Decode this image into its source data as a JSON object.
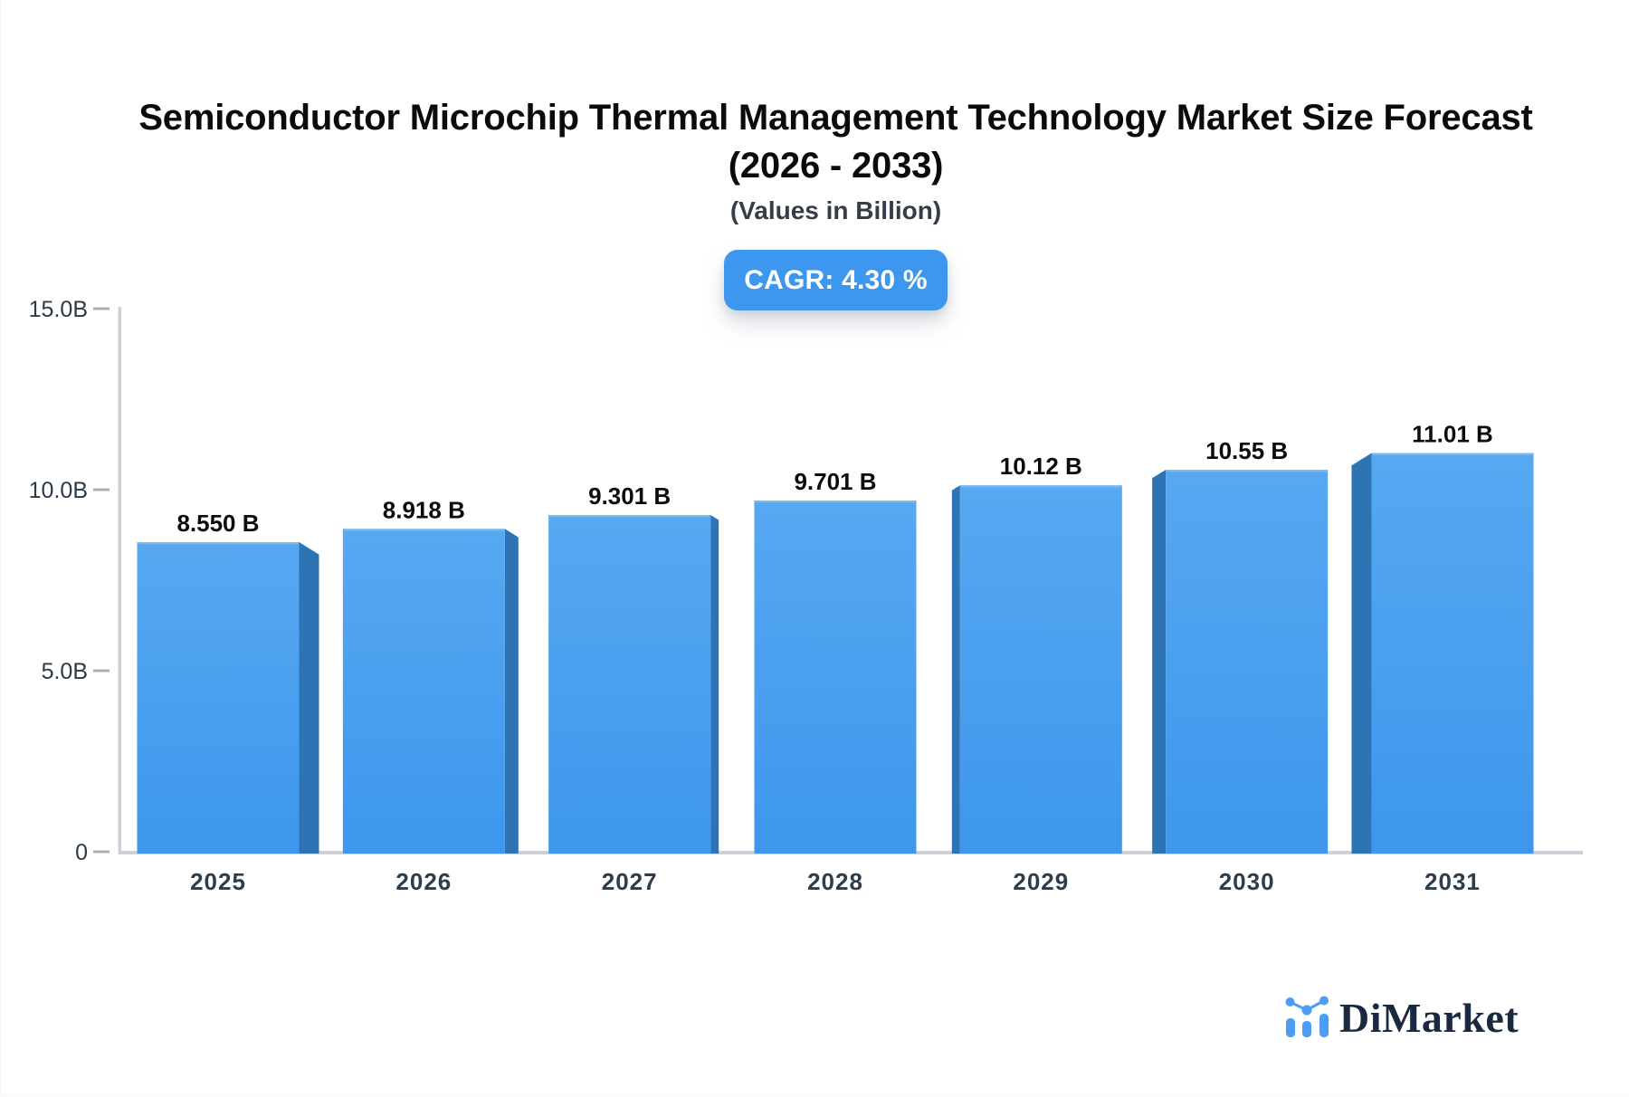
{
  "title_line1": "Semiconductor Microchip Thermal Management Technology Market Size Forecast",
  "title_line2": "(2026 - 2033)",
  "subtitle": "(Values in Billion)",
  "badge": {
    "label": "CAGR: 4.30 %",
    "bg": "#3e97ee"
  },
  "logo": {
    "text": "DiMarket",
    "icon": "bar-chart-logo-icon",
    "icon_color": "#4b9df5",
    "text_color": "#1b2940"
  },
  "chart_data": {
    "type": "bar",
    "categories": [
      "2025",
      "2026",
      "2027",
      "2028",
      "2029",
      "2030",
      "2031"
    ],
    "values": [
      8.55,
      8.918,
      9.301,
      9.701,
      10.12,
      10.55,
      11.01
    ],
    "value_labels": [
      "8.550 B",
      "8.918 B",
      "9.301 B",
      "9.701 B",
      "10.12 B",
      "10.55 B",
      "11.01 B"
    ],
    "title": "Semiconductor Microchip Thermal Management Technology Market Size Forecast (2026 - 2033)",
    "subtitle": "(Values in Billion)",
    "xlabel": "",
    "ylabel": "",
    "ylim": [
      0,
      15
    ],
    "yticks": [
      {
        "v": 0,
        "label": "0"
      },
      {
        "v": 5,
        "label": "5.0B"
      },
      {
        "v": 10,
        "label": "10.0B"
      },
      {
        "v": 15,
        "label": "15.0B"
      }
    ],
    "grid": false,
    "legend": null,
    "colors": {
      "bar_face_top": "#56a8f1",
      "bar_face_bottom": "#3e97ed",
      "bar_top_highlight": "#7ebdf4",
      "bar_side": "#2e74b5",
      "axis_line": "#ccd1d7",
      "tick_dash": "#a8b0b8",
      "ytick_text": "#2b3947",
      "xtick_text": "#2e3c4b",
      "value_text": "#0c0c0c"
    }
  }
}
